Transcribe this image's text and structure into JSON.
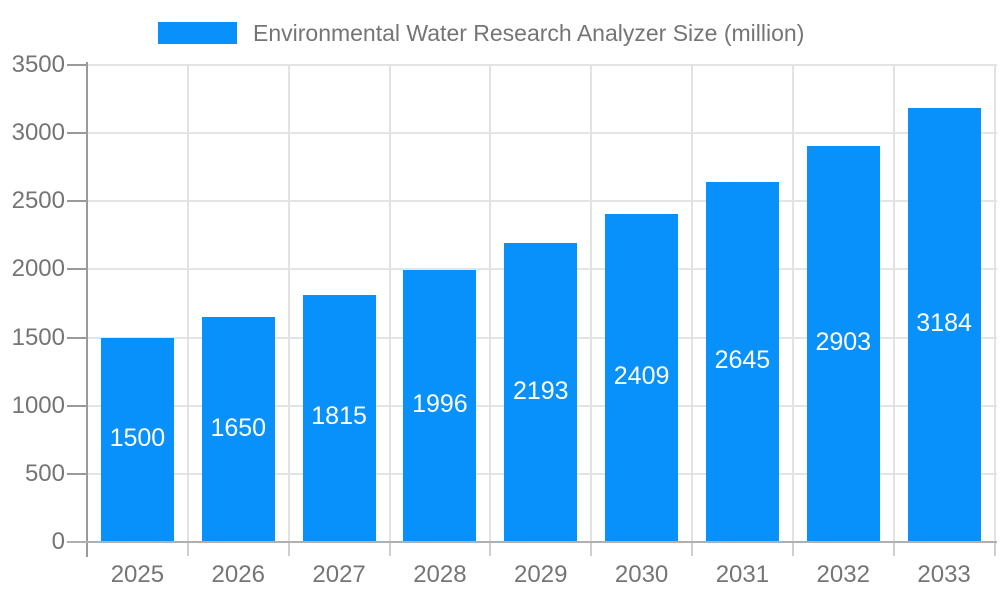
{
  "legend": {
    "label": "Environmental Water Research Analyzer Size (million)"
  },
  "colors": {
    "bar": "#0890fb",
    "axis_text": "#757575",
    "bar_label_text": "#ffffff",
    "grid_line": "#e2e2e2",
    "axis_line": "#9a9a9a"
  },
  "chart_data": {
    "type": "bar",
    "title": "Environmental Water Research Analyzer Size (million)",
    "categories": [
      "2025",
      "2026",
      "2027",
      "2028",
      "2029",
      "2030",
      "2031",
      "2032",
      "2033"
    ],
    "values": [
      1500,
      1650,
      1815,
      1996,
      2193,
      2409,
      2645,
      2903,
      3184
    ],
    "series_name": "Environmental Water Research Analyzer Size (million)",
    "xlabel": "",
    "ylabel": "",
    "ylim": [
      0,
      3500
    ],
    "ytick_step": 500,
    "yticks": [
      0,
      500,
      1000,
      1500,
      2000,
      2500,
      3000,
      3500
    ],
    "grid": true,
    "legend_position": "top",
    "bar_labels": "inside-center"
  }
}
